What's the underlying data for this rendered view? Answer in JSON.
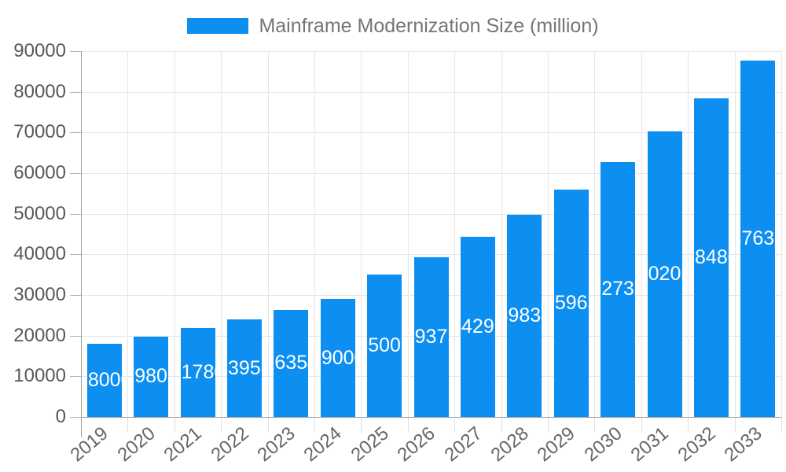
{
  "legend": {
    "label": "Mainframe Modernization Size (million)",
    "swatch_color": "#0d8ff2"
  },
  "chart_data": {
    "type": "bar",
    "title": "Mainframe Modernization Size (million)",
    "categories": [
      "2019",
      "2020",
      "2021",
      "2022",
      "2023",
      "2024",
      "2025",
      "2026",
      "2027",
      "2028",
      "2029",
      "2030",
      "2031",
      "2032",
      "2033"
    ],
    "values": [
      18000,
      19800,
      21780,
      23958,
      26354,
      29000,
      35000,
      39375,
      44297,
      49834,
      55963,
      62730,
      70203,
      78480,
      87638
    ],
    "xlabel": "",
    "ylabel": "",
    "ylim": [
      0,
      90000
    ],
    "ytick_step": 10000,
    "ytick_labels": [
      "0",
      "10000",
      "20000",
      "30000",
      "40000",
      "50000",
      "60000",
      "70000",
      "80000",
      "90000"
    ],
    "grid": true,
    "legend_position": "top-center",
    "bar_color": "#0d8ff2",
    "value_label_color": "#ffffff",
    "value_labels_inside_and_clipped": true,
    "x_label_rotation_deg": -40
  },
  "colors": {
    "bar": "#0d8ff2",
    "legend_text": "#757575",
    "axis_text": "#595959",
    "x_axis_text": "#666666",
    "gridline": "#e6e6e6",
    "axis_line": "#9e9e9e",
    "background": "#ffffff"
  }
}
